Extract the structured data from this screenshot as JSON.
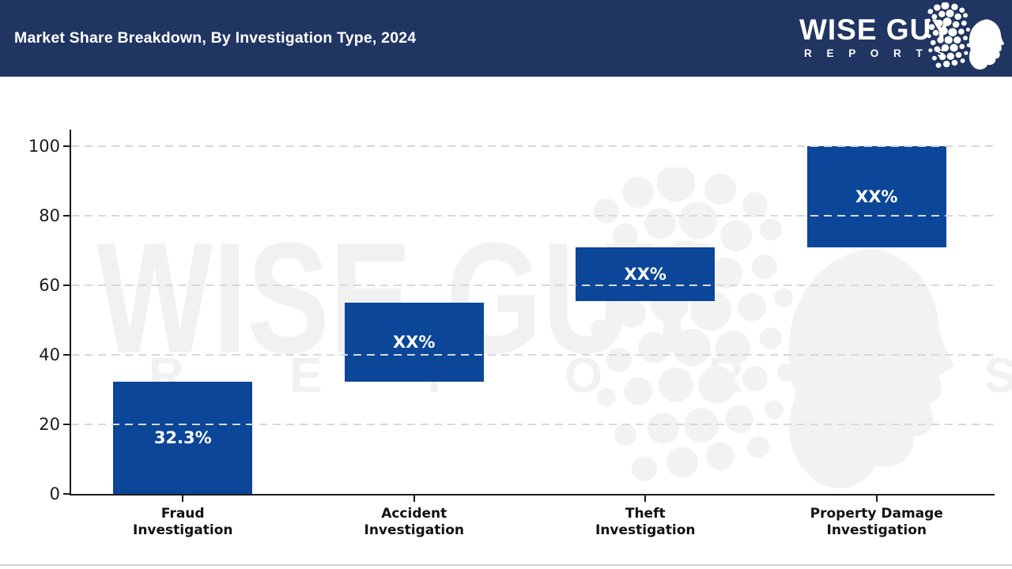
{
  "header": {
    "title": "Market Share Breakdown, By Investigation Type, 2024",
    "logo": {
      "name": "WISE GUY",
      "sub": "R E P O R T S"
    }
  },
  "watermark": {
    "line1": "WISE GUY",
    "line2": "R E P O R T S"
  },
  "chart_data": {
    "type": "bar",
    "subtype": "waterfall",
    "title": "Market Share Breakdown, By Investigation Type, 2024",
    "xlabel": "",
    "ylabel": "",
    "ylim": [
      0,
      100
    ],
    "yticks": [
      0,
      20,
      40,
      60,
      80,
      100
    ],
    "grid": "dashed-horizontal",
    "legend": "none",
    "categories": [
      [
        "Fraud",
        "Investigation"
      ],
      [
        "Accident",
        "Investigation"
      ],
      [
        "Theft",
        "Investigation"
      ],
      [
        "Property Damage",
        "Investigation"
      ]
    ],
    "series": [
      {
        "category": "Fraud Investigation",
        "label": "32.3%",
        "start": 0,
        "end": 32.3
      },
      {
        "category": "Accident Investigation",
        "label": "XX%",
        "start": 32.3,
        "end": 55
      },
      {
        "category": "Theft Investigation",
        "label": "XX%",
        "start": 55.5,
        "end": 71
      },
      {
        "category": "Property Damage Investigation",
        "label": "XX%",
        "start": 71,
        "end": 100
      }
    ]
  },
  "colors": {
    "header_bg": "#213563",
    "bar": "#0b4699",
    "bar_label": "#ffffff",
    "axis": "#1a1a1a",
    "gridline": "#d8d8d8",
    "watermark": "#f1f1f1"
  }
}
